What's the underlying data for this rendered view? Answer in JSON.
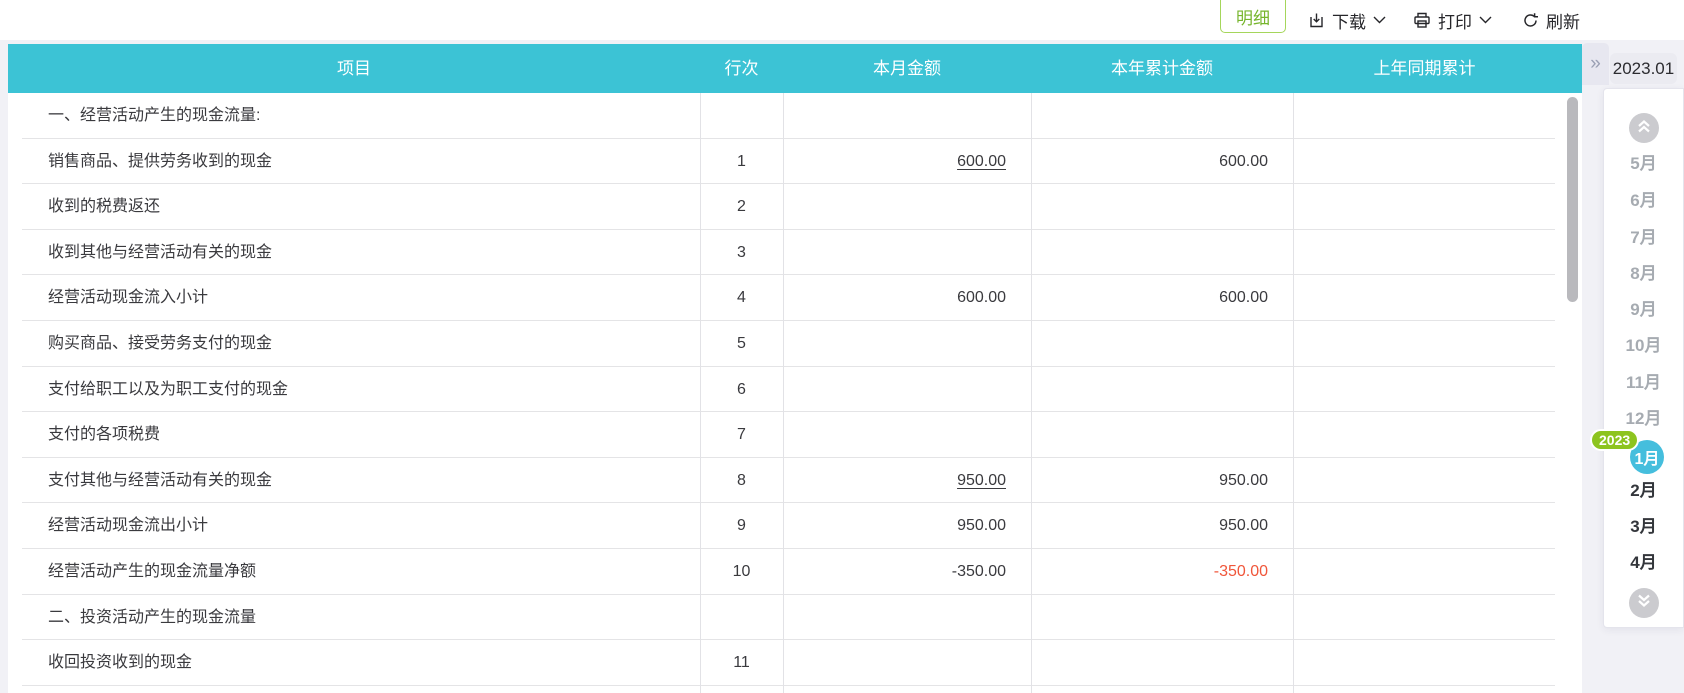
{
  "toolbar": {
    "detail": "明细",
    "download": "下载",
    "print": "打印",
    "refresh": "刷新"
  },
  "collapse_glyph": "»",
  "period": "2023.01",
  "table": {
    "columns": [
      "项目",
      "行次",
      "本月金额",
      "本年累计金额",
      "上年同期累计"
    ],
    "rows": [
      {
        "item": "一、经营活动产生的现金流量:",
        "line": "",
        "month": "",
        "ytd": "",
        "prev": ""
      },
      {
        "item": "销售商品、提供劳务收到的现金",
        "line": "1",
        "month": "600.00",
        "month_link": true,
        "ytd": "600.00",
        "prev": ""
      },
      {
        "item": "收到的税费返还",
        "line": "2",
        "month": "",
        "ytd": "",
        "prev": ""
      },
      {
        "item": "收到其他与经营活动有关的现金",
        "line": "3",
        "month": "",
        "ytd": "",
        "prev": ""
      },
      {
        "item": "经营活动现金流入小计",
        "line": "4",
        "month": "600.00",
        "ytd": "600.00",
        "prev": ""
      },
      {
        "item": "购买商品、接受劳务支付的现金",
        "line": "5",
        "month": "",
        "ytd": "",
        "prev": ""
      },
      {
        "item": "支付给职工以及为职工支付的现金",
        "line": "6",
        "month": "",
        "ytd": "",
        "prev": ""
      },
      {
        "item": "支付的各项税费",
        "line": "7",
        "month": "",
        "ytd": "",
        "prev": ""
      },
      {
        "item": "支付其他与经营活动有关的现金",
        "line": "8",
        "month": "950.00",
        "month_link": true,
        "ytd": "950.00",
        "prev": ""
      },
      {
        "item": "经营活动现金流出小计",
        "line": "9",
        "month": "950.00",
        "ytd": "950.00",
        "prev": ""
      },
      {
        "item": "经营活动产生的现金流量净额",
        "line": "10",
        "month": "-350.00",
        "ytd": "-350.00",
        "ytd_negative": true,
        "prev": ""
      },
      {
        "item": "二、投资活动产生的现金流量",
        "line": "",
        "month": "",
        "ytd": "",
        "prev": ""
      },
      {
        "item": "收回投资收到的现金",
        "line": "11",
        "month": "",
        "ytd": "",
        "prev": ""
      }
    ]
  },
  "month_panel": {
    "year_badge": "2023",
    "months_upper": [
      "5月",
      "6月",
      "7月",
      "8月",
      "9月",
      "10月",
      "11月",
      "12月"
    ],
    "selected": "1月",
    "months_lower": [
      "2月",
      "3月",
      "4月"
    ]
  },
  "colors": {
    "header_bg": "#3cc3d5",
    "selected_month_bg": "#45bedd",
    "year_badge_bg": "#8dc41f",
    "negative_value": "#f0563a",
    "detail_button_green": "#76b52c"
  }
}
